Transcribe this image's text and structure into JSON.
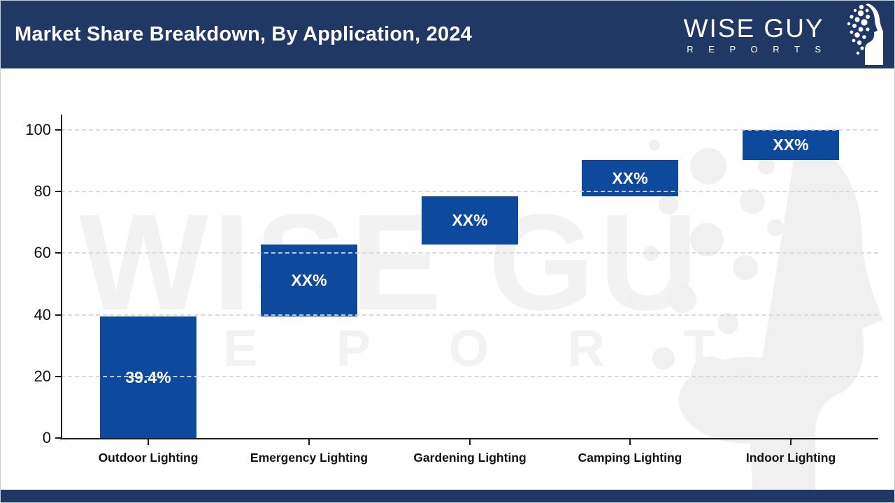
{
  "header": {
    "title": "Market Share Breakdown, By Application, 2024",
    "logo": {
      "line1": "WISE GUY",
      "line2": "R E P O R T S"
    }
  },
  "watermark": {
    "line1": "WISE GU",
    "line2": "R E P O R T S"
  },
  "colors": {
    "header_bg": "#1f3864",
    "footer_bg": "#1f3864",
    "bar": "#0d4a9e",
    "bar_label": "#ffffff",
    "grid": "#d7d7d7",
    "axis": "#1a1a1a",
    "watermark": "#f2f2f2"
  },
  "chart_data": {
    "type": "bar",
    "subtype": "waterfall",
    "title": "Market Share Breakdown, By Application, 2024",
    "categories": [
      "Outdoor Lighting",
      "Emergency Lighting",
      "Gardening Lighting",
      "Camping Lighting",
      "Indoor Lighting"
    ],
    "segments": [
      {
        "category": "Outdoor Lighting",
        "start": 0,
        "end": 39.4,
        "label": "39.4%"
      },
      {
        "category": "Emergency Lighting",
        "start": 39.4,
        "end": 62.8,
        "label": "XX%"
      },
      {
        "category": "Gardening Lighting",
        "start": 62.8,
        "end": 78.4,
        "label": "XX%"
      },
      {
        "category": "Camping Lighting",
        "start": 78.4,
        "end": 90.2,
        "label": "XX%"
      },
      {
        "category": "Indoor Lighting",
        "start": 90.2,
        "end": 100.0,
        "label": "XX%"
      }
    ],
    "xlabel": "",
    "ylabel": "",
    "ylim": [
      0,
      105
    ],
    "y_ticks": [
      0,
      20,
      40,
      60,
      80,
      100
    ],
    "grid": "horizontal-dashed",
    "legend": "none",
    "bar_value_labels_inside": true
  }
}
